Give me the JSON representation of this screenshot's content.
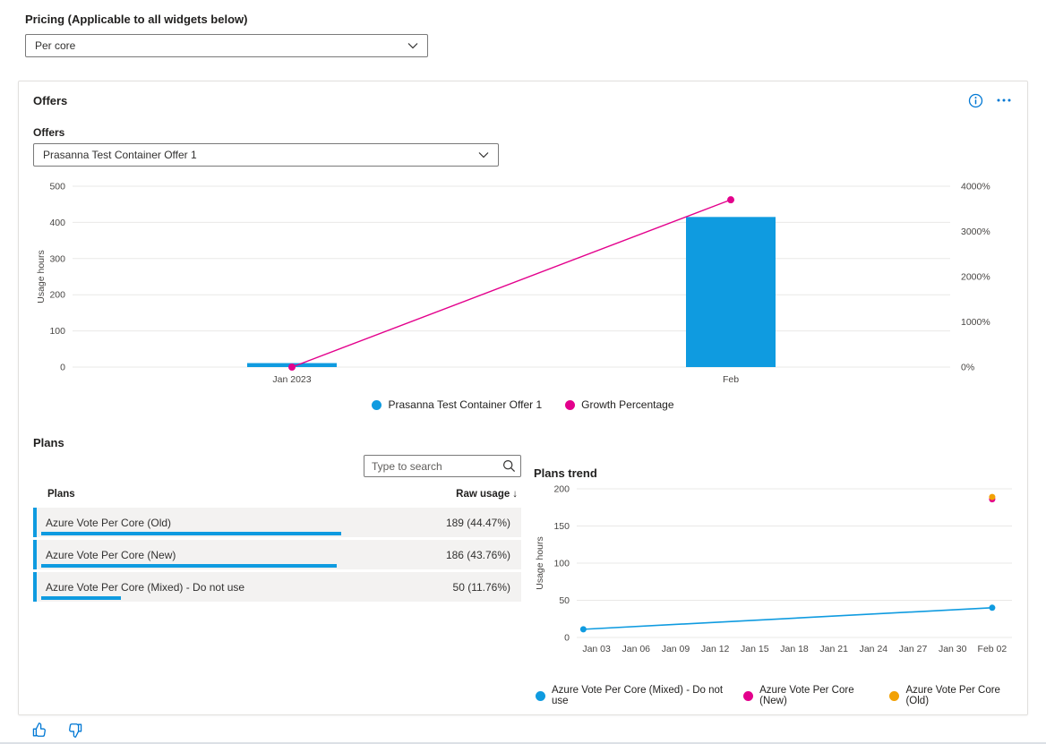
{
  "pricing": {
    "label": "Pricing (Applicable to all widgets below)",
    "selected": "Per core"
  },
  "offers_card": {
    "title": "Offers",
    "icons": {
      "info": "info-icon",
      "more": "more-options-icon"
    },
    "offers_field": {
      "label": "Offers",
      "selected": "Prasanna Test Container Offer 1"
    }
  },
  "plans": {
    "title": "Plans",
    "search": {
      "placeholder": "Type to search",
      "icon": "search-icon"
    },
    "table": {
      "columns": [
        "Plans",
        "Raw usage"
      ],
      "sort_indicator": "↓",
      "rows": [
        {
          "plan": "Azure Vote Per Core (Old)",
          "raw_usage": "189 (44.47%)",
          "value": 189,
          "pct": 44.47
        },
        {
          "plan": "Azure Vote Per Core (New)",
          "raw_usage": "186 (43.76%)",
          "value": 186,
          "pct": 43.76
        },
        {
          "plan": "Azure Vote Per Core (Mixed) - Do not use",
          "raw_usage": "50 (11.76%)",
          "value": 50,
          "pct": 11.76
        }
      ]
    }
  },
  "feedback": {
    "icons": [
      "thumbs-up-icon",
      "thumbs-down-icon"
    ]
  },
  "colors": {
    "accent": "#0078d4",
    "chart_blue": "#0f9be0",
    "magenta": "#e3008c",
    "orange": "#f2a104",
    "grid": "#e9e8e7",
    "row_bg": "#f3f2f1"
  },
  "chart_data": [
    {
      "type": "bar",
      "title": "",
      "categories": [
        "Jan 2023",
        "Feb"
      ],
      "series": [
        {
          "name": "Prasanna Test Container Offer 1",
          "type": "bar",
          "axis": "left",
          "values": [
            11,
            415
          ],
          "color": "#0f9be0"
        },
        {
          "name": "Growth Percentage",
          "type": "line",
          "axis": "right",
          "values": [
            0,
            3700
          ],
          "color": "#e3008c"
        }
      ],
      "xlabel": "",
      "ylabel": "Usage hours",
      "left_axis": {
        "ticks": [
          0,
          100,
          200,
          300,
          400,
          500
        ],
        "lim": [
          0,
          500
        ]
      },
      "right_axis": {
        "ticks": [
          "0%",
          "1000%",
          "2000%",
          "3000%",
          "4000%"
        ],
        "lim": [
          0,
          4000
        ]
      },
      "grid": true,
      "legend_position": "bottom"
    },
    {
      "type": "line",
      "title": "Plans trend",
      "xlabel": "",
      "ylabel": "Usage hours",
      "x_domain": [
        1.5,
        34.5
      ],
      "x_tick_days": [
        3,
        6,
        9,
        12,
        15,
        18,
        21,
        24,
        27,
        30,
        33
      ],
      "x_tick_labels": [
        "Jan 03",
        "Jan 06",
        "Jan 09",
        "Jan 12",
        "Jan 15",
        "Jan 18",
        "Jan 21",
        "Jan 24",
        "Jan 27",
        "Jan 30",
        "Feb 02"
      ],
      "y_ticks": [
        0,
        50,
        100,
        150,
        200
      ],
      "ylim": [
        0,
        200
      ],
      "series": [
        {
          "name": "Azure Vote Per Core (Mixed) - Do not use",
          "color": "#0f9be0",
          "points": [
            {
              "x": 2,
              "y": 11
            },
            {
              "x": 33,
              "y": 40
            }
          ]
        },
        {
          "name": "Azure Vote Per Core (New)",
          "color": "#e3008c",
          "points": [
            {
              "x": 33,
              "y": 186
            }
          ]
        },
        {
          "name": "Azure Vote Per Core (Old)",
          "color": "#f2a104",
          "points": [
            {
              "x": 33,
              "y": 189
            }
          ]
        }
      ],
      "grid": true,
      "legend_position": "bottom"
    }
  ]
}
